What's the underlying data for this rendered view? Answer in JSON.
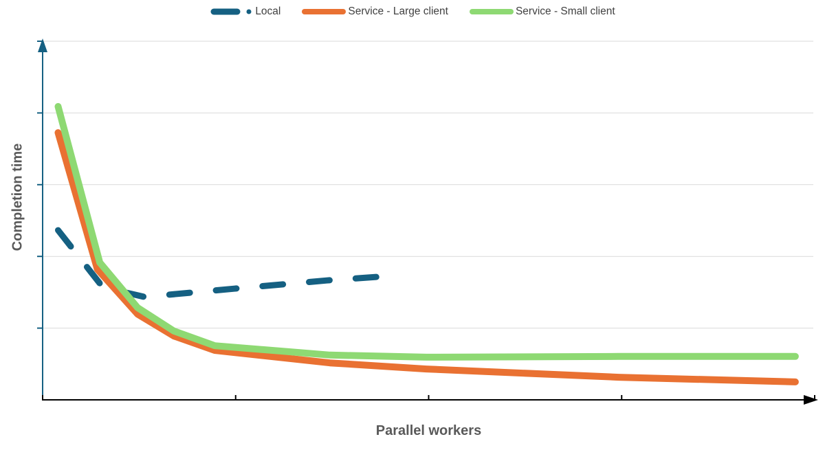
{
  "chart_data": {
    "type": "line",
    "title": "",
    "xlabel": "Parallel workers",
    "ylabel": "Completion time",
    "legend_position": "top",
    "grid": true,
    "axes_note": "qualitative chart: no numeric tick labels shown; values are percent of axis span",
    "x_axis": {
      "min": 0,
      "max": 100,
      "ticks": [
        0,
        25,
        50,
        75,
        100
      ],
      "tick_labels": []
    },
    "y_axis": {
      "min": 0,
      "max": 100,
      "gridlines": [
        20,
        40,
        60,
        80,
        100
      ],
      "tick_labels": []
    },
    "colors": {
      "grid": "#D9D9D9",
      "x_axis": "#000000",
      "y_axis": "#156082"
    },
    "series": [
      {
        "name": "Local",
        "color": "#156082",
        "style": "dashed",
        "points": [
          [
            2,
            47.3
          ],
          [
            7.8,
            31.4
          ],
          [
            13.2,
            28.7
          ],
          [
            24.8,
            31
          ],
          [
            36.8,
            33.3
          ],
          [
            44.8,
            34.5
          ]
        ]
      },
      {
        "name": "Service - Large client",
        "color": "#E97132",
        "style": "solid",
        "points": [
          [
            2,
            74.5
          ],
          [
            7.1,
            36.4
          ],
          [
            12.3,
            23.9
          ],
          [
            17,
            17.8
          ],
          [
            22.3,
            13.8
          ],
          [
            37.2,
            10.3
          ],
          [
            49.7,
            8.6
          ],
          [
            74.6,
            6.3
          ],
          [
            97.5,
            5
          ]
        ]
      },
      {
        "name": "Service - Small client",
        "color": "#8ED973",
        "style": "solid",
        "points": [
          [
            2,
            81.8
          ],
          [
            7.4,
            38.3
          ],
          [
            12.3,
            25.7
          ],
          [
            17,
            19.2
          ],
          [
            22.3,
            15.1
          ],
          [
            37.2,
            12.5
          ],
          [
            49.7,
            11.9
          ],
          [
            74.6,
            12.1
          ],
          [
            97.5,
            12.1
          ]
        ]
      }
    ]
  }
}
